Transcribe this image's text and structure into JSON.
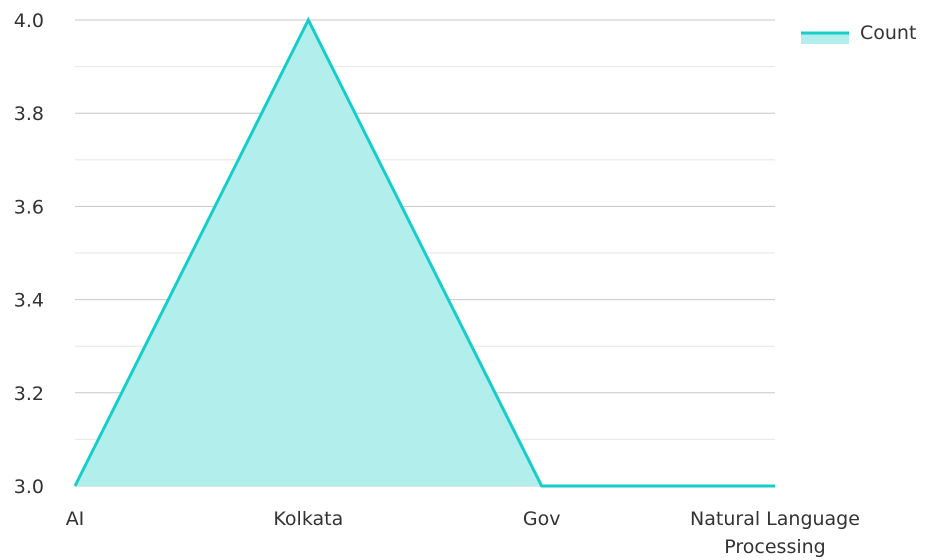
{
  "chart_data": {
    "type": "area",
    "title": "",
    "xlabel": "",
    "ylabel": "",
    "categories": [
      "AI",
      "Kolkata",
      "Gov",
      "Natural Language Processing"
    ],
    "category_lines": [
      [
        "AI"
      ],
      [
        "Kolkata"
      ],
      [
        "Gov"
      ],
      [
        "Natural Language",
        "Processing"
      ]
    ],
    "series": [
      {
        "name": "Count",
        "values": [
          3,
          4,
          3,
          3
        ],
        "color": "#17cdc9",
        "fill": "#b2eeec"
      }
    ],
    "ylim": [
      3.0,
      4.0
    ],
    "yticks": [
      "3.0",
      "3.2",
      "3.4",
      "3.6",
      "3.8",
      "4.0"
    ],
    "ytick_values": [
      3.0,
      3.2,
      3.4,
      3.6,
      3.8,
      4.0
    ],
    "minor_grid": true,
    "grid": true,
    "grid_color": "#c8c8c8",
    "legend": {
      "position": "top-right"
    }
  }
}
